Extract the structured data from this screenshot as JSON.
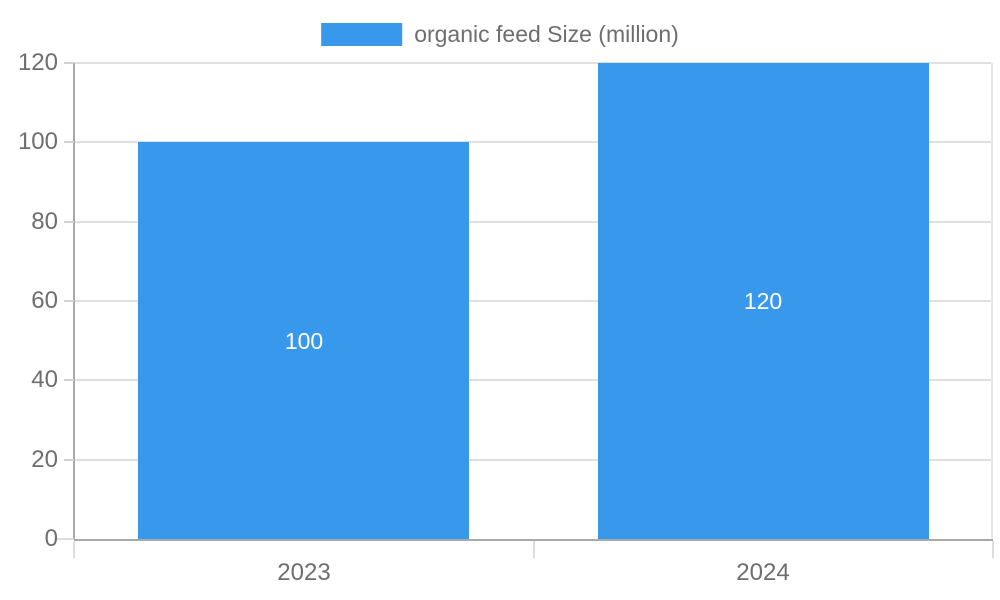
{
  "legend": {
    "label": "organic feed Size (million)"
  },
  "colors": {
    "bar": "#3898ec",
    "axis_line": "#a9a9a9",
    "gridline": "#e0e0e0",
    "minor_tick": "#d2d2d2",
    "boundary_tick": "#dcdcdc",
    "text": "#6e6e6e",
    "value_label": "#ffffff"
  },
  "chart_data": {
    "type": "bar",
    "title": "",
    "xlabel": "",
    "ylabel": "",
    "categories": [
      "2023",
      "2024"
    ],
    "series": [
      {
        "name": "organic feed Size (million)",
        "values": [
          100,
          120
        ]
      }
    ],
    "data_labels": [
      "100",
      "120"
    ],
    "ylim": [
      0,
      120
    ],
    "yticks": [
      0,
      20,
      40,
      60,
      80,
      100,
      120
    ],
    "grid": true,
    "legend_position": "top-center"
  }
}
